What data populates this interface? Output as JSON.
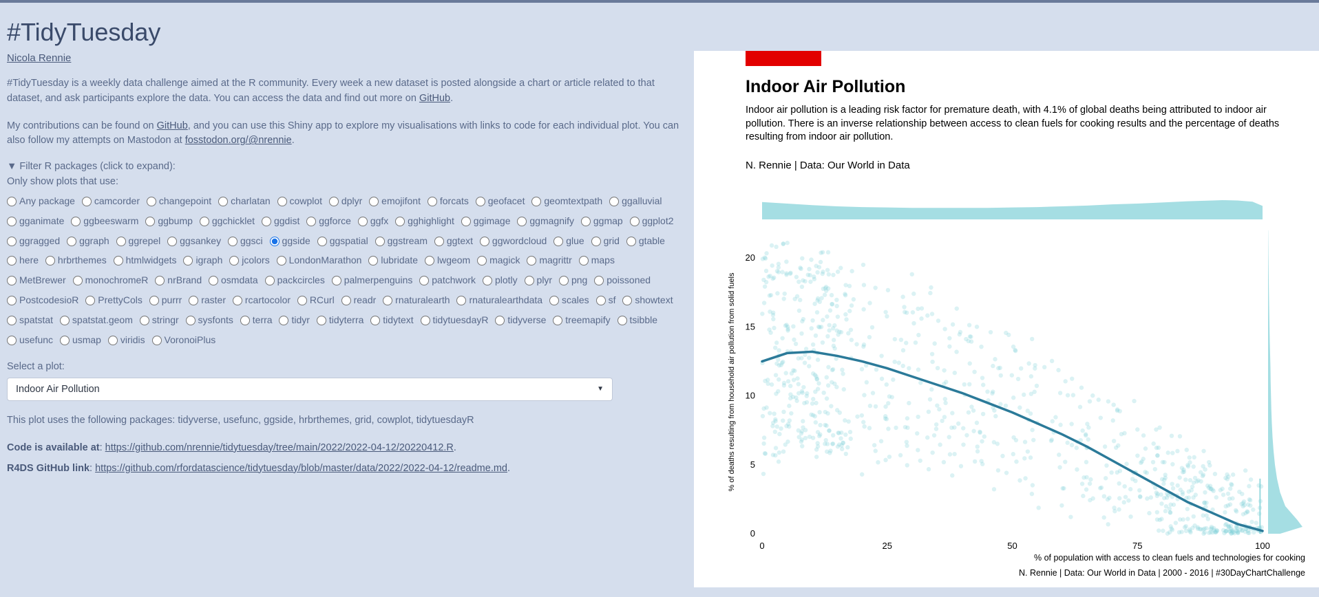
{
  "page": {
    "title": "#TidyTuesday",
    "author": "Nicola Rennie",
    "intro_p1a": "#TidyTuesday is a weekly data challenge aimed at the R community. Every week a new dataset is posted alongside a chart or article related to that dataset, and ask participants explore the data. You can access the data and find out more on ",
    "intro_p1_link": "GitHub",
    "intro_p2a": "My contributions can be found on ",
    "intro_p2_link1": "GitHub",
    "intro_p2b": ", and you can use this Shiny app to explore my visualisations with links to code for each individual plot. You can also follow my attempts on Mastodon at ",
    "intro_p2_link2": "fosstodon.org/@nrennie",
    "filter_toggle": "▼ Filter R packages (click to expand):",
    "filter_label": "Only show plots that use:",
    "packages": [
      "Any package",
      "camcorder",
      "changepoint",
      "charlatan",
      "cowplot",
      "dplyr",
      "emojifont",
      "forcats",
      "geofacet",
      "geomtextpath",
      "ggalluvial",
      "gganimate",
      "ggbeeswarm",
      "ggbump",
      "ggchicklet",
      "ggdist",
      "ggforce",
      "ggfx",
      "gghighlight",
      "ggimage",
      "ggmagnify",
      "ggmap",
      "ggplot2",
      "ggragged",
      "ggraph",
      "ggrepel",
      "ggsankey",
      "ggsci",
      "ggside",
      "ggspatial",
      "ggstream",
      "ggtext",
      "ggwordcloud",
      "glue",
      "grid",
      "gtable",
      "here",
      "hrbrthemes",
      "htmlwidgets",
      "igraph",
      "jcolors",
      "LondonMarathon",
      "lubridate",
      "lwgeom",
      "magick",
      "magrittr",
      "maps",
      "MetBrewer",
      "monochromeR",
      "nrBrand",
      "osmdata",
      "packcircles",
      "palmerpenguins",
      "patchwork",
      "plotly",
      "plyr",
      "png",
      "poissoned",
      "PostcodesioR",
      "PrettyCols",
      "purrr",
      "raster",
      "rcartocolor",
      "RCurl",
      "readr",
      "rnaturalearth",
      "rnaturalearthdata",
      "scales",
      "sf",
      "showtext",
      "spatstat",
      "spatstat.geom",
      "stringr",
      "sysfonts",
      "terra",
      "tidyr",
      "tidyterra",
      "tidytext",
      "tidytuesdayR",
      "tidyverse",
      "treemapify",
      "tsibble",
      "usefunc",
      "usmap",
      "viridis",
      "VoronoiPlus"
    ],
    "selected_package": "ggside",
    "select_label": "Select a plot:",
    "selected_plot": "Indoor Air Pollution",
    "packages_used_line": "This plot uses the following packages: tidyverse, usefunc, ggside, hrbrthemes, grid, cowplot, tidytuesdayR",
    "code_label": "Code is available at",
    "code_url": "https://github.com/nrennie/tidytuesday/tree/main/2022/2022-04-12/20220412.R",
    "r4ds_label": "R4DS GitHub link",
    "r4ds_url": "https://github.com/rfordatascience/tidytuesday/blob/master/data/2022/2022-04-12/readme.md"
  },
  "chart": {
    "type": "scatter_with_marginal_densities",
    "title": "Indoor Air Pollution",
    "subtitle": "Indoor air pollution is a leading risk factor for premature death, with 4.1% of global deaths being attributed to indoor air pollution. There is an inverse relationship between access to clean fuels for cooking results and the percentage of deaths resulting from indoor air pollution.",
    "byline": "N. Rennie | Data: Our World in Data",
    "xlabel": "% of population with access to clean fuels and technologies for cooking",
    "ylabel": "% of deaths resulting from household air pollution from solid fuels",
    "xlim": [
      0,
      100
    ],
    "ylim": [
      0,
      22
    ],
    "xticks": [
      0,
      25,
      50,
      75,
      100
    ],
    "yticks": [
      0,
      5,
      10,
      15,
      20
    ],
    "background_color": "#ffffff",
    "point_color": "#7ecfd6",
    "point_opacity": 0.28,
    "point_radius": 3.2,
    "trend_color": "#2b7a99",
    "trend_width": 3.5,
    "marginal_fill": "#a5dee3",
    "trend_line": [
      [
        0,
        12.5
      ],
      [
        5,
        13.1
      ],
      [
        10,
        13.2
      ],
      [
        15,
        12.9
      ],
      [
        20,
        12.5
      ],
      [
        25,
        12.0
      ],
      [
        30,
        11.4
      ],
      [
        35,
        10.8
      ],
      [
        40,
        10.2
      ],
      [
        45,
        9.5
      ],
      [
        50,
        8.8
      ],
      [
        55,
        8.0
      ],
      [
        60,
        7.2
      ],
      [
        65,
        6.3
      ],
      [
        70,
        5.3
      ],
      [
        75,
        4.3
      ],
      [
        80,
        3.3
      ],
      [
        85,
        2.3
      ],
      [
        90,
        1.5
      ],
      [
        95,
        0.7
      ],
      [
        100,
        0.2
      ]
    ],
    "x_density": [
      [
        0,
        0.9
      ],
      [
        5,
        0.82
      ],
      [
        10,
        0.74
      ],
      [
        15,
        0.68
      ],
      [
        20,
        0.64
      ],
      [
        25,
        0.62
      ],
      [
        30,
        0.6
      ],
      [
        35,
        0.6
      ],
      [
        40,
        0.6
      ],
      [
        45,
        0.6
      ],
      [
        50,
        0.62
      ],
      [
        55,
        0.64
      ],
      [
        60,
        0.68
      ],
      [
        65,
        0.72
      ],
      [
        70,
        0.78
      ],
      [
        75,
        0.82
      ],
      [
        80,
        0.88
      ],
      [
        85,
        0.94
      ],
      [
        90,
        0.98
      ],
      [
        92,
        1.0
      ],
      [
        95,
        0.98
      ],
      [
        98,
        0.92
      ],
      [
        100,
        0.7
      ]
    ],
    "y_density": [
      [
        0,
        0.35
      ],
      [
        0.5,
        1.0
      ],
      [
        1,
        0.85
      ],
      [
        2,
        0.5
      ],
      [
        3,
        0.35
      ],
      [
        4,
        0.26
      ],
      [
        5,
        0.2
      ],
      [
        6,
        0.16
      ],
      [
        7,
        0.13
      ],
      [
        8,
        0.11
      ],
      [
        9,
        0.095
      ],
      [
        10,
        0.085
      ],
      [
        11,
        0.075
      ],
      [
        12,
        0.07
      ],
      [
        13,
        0.06
      ],
      [
        14,
        0.05
      ],
      [
        15,
        0.042
      ],
      [
        16,
        0.035
      ],
      [
        17,
        0.028
      ],
      [
        18,
        0.022
      ],
      [
        19,
        0.017
      ],
      [
        20,
        0.012
      ],
      [
        21,
        0.008
      ],
      [
        22,
        0.004
      ]
    ],
    "caption1": "% of population with access to clean fuels and technologies for cooking",
    "caption2": "N. Rennie | Data: Our World in Data | 2000 - 2016 | #30DayChartChallenge",
    "scatter_seed": 7,
    "scatter_n": 900
  }
}
